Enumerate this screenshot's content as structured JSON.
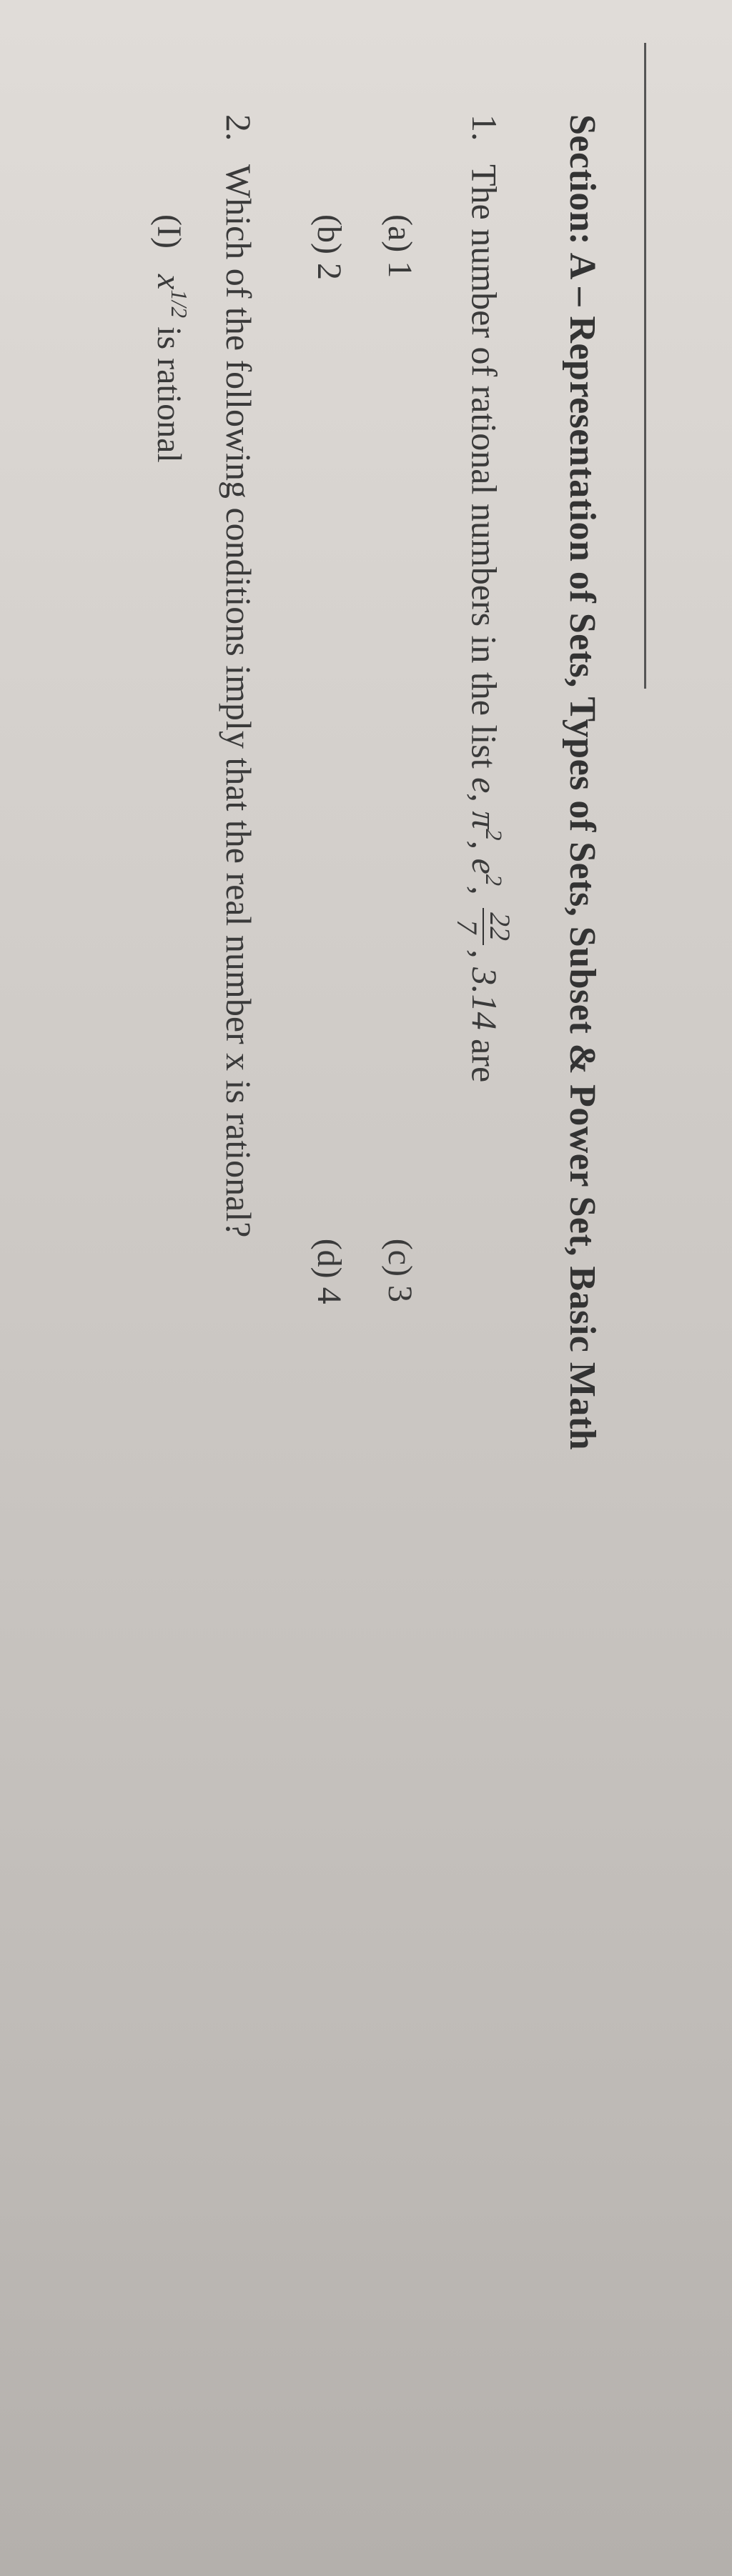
{
  "section_title": "Section: A – Representation of Sets, Types of Sets, Subset & Power Set, Basic Math",
  "q1": {
    "num": "1.",
    "text_prefix": "The number of rational numbers in the list ",
    "math_items": {
      "e": "e",
      "pi_sq_base": "π",
      "pi_sq_exp": "2",
      "e_sq_base": "e",
      "e_sq_exp": "2",
      "frac_num": "22",
      "frac_den": "7",
      "last": "3.14"
    },
    "text_suffix": " are",
    "options": {
      "a": "(a)  1",
      "b": "(b)  2",
      "c": "(c)  3",
      "d": "(d)  4"
    }
  },
  "q2": {
    "num": "2.",
    "text": "Which of the following conditions imply that the real number x is rational?",
    "option_i": {
      "label": "(I)",
      "x": "x",
      "exp": "1/2",
      "suffix": " is rational"
    }
  }
}
